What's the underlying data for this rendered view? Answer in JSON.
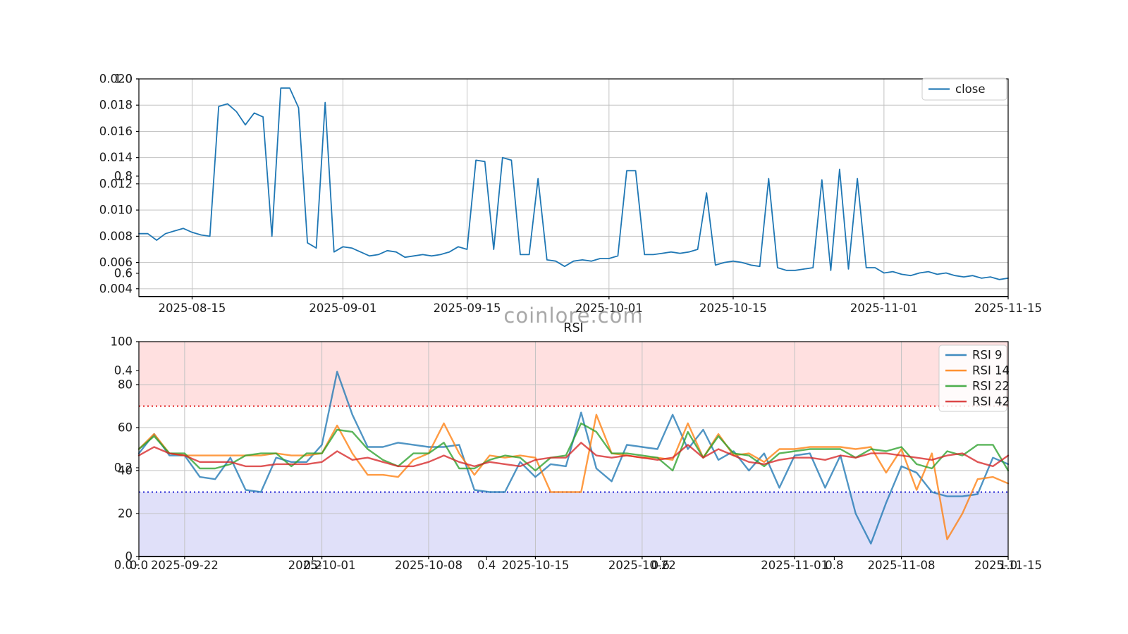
{
  "watermark": "coinlore.com",
  "style": {
    "background": "#ffffff",
    "grid_color": "#c2c2c2",
    "spine_color": "#000000",
    "tick_label_color": "#1a1a1a",
    "legend_border": "#cccccc",
    "legend_bg": "#ffffff",
    "overbought_band_color": "rgba(255,0,0,0.12)",
    "oversold_band_color": "rgba(0,0,205,0.12)",
    "overbought_line_color": "#dd0000",
    "oversold_line_color": "#0000cc"
  },
  "stray_axis_labels": {
    "y_labels": [
      "1.0",
      "0.8",
      "0.6",
      "0.4",
      "0.2",
      "0.0"
    ],
    "x_labels": [
      "0.0",
      "0.2",
      "0.4",
      "0.6",
      "0.8",
      "1.0"
    ]
  },
  "chart_data": [
    {
      "id": "price",
      "type": "line",
      "title": "",
      "start_date": "2025-08-09",
      "ylim": [
        0.0034,
        0.02
      ],
      "y_ticks": [
        0.004,
        0.006,
        0.008,
        0.01,
        0.012,
        0.014,
        0.016,
        0.018,
        0.02
      ],
      "y_tick_labels": [
        "0.004",
        "0.006",
        "0.008",
        "0.010",
        "0.012",
        "0.014",
        "0.016",
        "0.018",
        "0.020"
      ],
      "x_tick_labels": [
        "2025-08-15",
        "2025-09-01",
        "2025-09-15",
        "2025-10-01",
        "2025-10-15",
        "2025-11-01",
        "2025-11-15"
      ],
      "x_tick_indices": [
        6,
        23,
        37,
        53,
        67,
        84,
        98
      ],
      "grid": true,
      "legend_position": "upper right",
      "legend": [
        {
          "label": "close",
          "color": "#1f77b4"
        }
      ],
      "series": [
        {
          "name": "close",
          "color": "#1f77b4",
          "width": 1.8,
          "opacity": 1,
          "values": [
            0.0082,
            0.0082,
            0.0077,
            0.0082,
            0.0084,
            0.0086,
            0.0083,
            0.0081,
            0.008,
            0.0179,
            0.0181,
            0.0175,
            0.0165,
            0.0174,
            0.0171,
            0.008,
            0.0193,
            0.0193,
            0.0178,
            0.0075,
            0.0071,
            0.0182,
            0.0068,
            0.0072,
            0.0071,
            0.0068,
            0.0065,
            0.0066,
            0.0069,
            0.0068,
            0.0064,
            0.0065,
            0.0066,
            0.0065,
            0.0066,
            0.0068,
            0.0072,
            0.007,
            0.0138,
            0.0137,
            0.007,
            0.014,
            0.0138,
            0.0066,
            0.0066,
            0.0124,
            0.0062,
            0.0061,
            0.0057,
            0.0061,
            0.0062,
            0.0061,
            0.0063,
            0.0063,
            0.0065,
            0.013,
            0.013,
            0.0066,
            0.0066,
            0.0067,
            0.0068,
            0.0067,
            0.0068,
            0.007,
            0.0113,
            0.0058,
            0.006,
            0.0061,
            0.006,
            0.0058,
            0.0057,
            0.0124,
            0.0056,
            0.0054,
            0.0054,
            0.0055,
            0.0056,
            0.0123,
            0.0054,
            0.0131,
            0.0055,
            0.0124,
            0.0056,
            0.0056,
            0.0052,
            0.0053,
            0.0051,
            0.005,
            0.0052,
            0.0053,
            0.0051,
            0.0052,
            0.005,
            0.0049,
            0.005,
            0.0048,
            0.0049,
            0.0047,
            0.0048
          ]
        }
      ]
    },
    {
      "id": "rsi",
      "type": "line",
      "title": "RSI",
      "start_date": "2025-09-19",
      "ylim": [
        0,
        100
      ],
      "y_ticks": [
        0,
        20,
        40,
        60,
        80,
        100
      ],
      "y_tick_labels": [
        "0",
        "20",
        "40",
        "60",
        "80",
        "100"
      ],
      "x_tick_labels": [
        "2025-09-22",
        "2025-10-01",
        "2025-10-08",
        "2025-10-15",
        "2025-10-22",
        "2025-11-01",
        "2025-11-08",
        "2025-11-15"
      ],
      "x_tick_indices": [
        3,
        12,
        19,
        26,
        33,
        43,
        50,
        57
      ],
      "grid": true,
      "overbought_level": 70,
      "oversold_level": 30,
      "legend_position": "upper right",
      "legend": [
        {
          "label": "RSI 9",
          "color": "#1f77b4"
        },
        {
          "label": "RSI 14",
          "color": "#ff7f0e"
        },
        {
          "label": "RSI 22",
          "color": "#2ca02c"
        },
        {
          "label": "RSI 42",
          "color": "#d62728"
        }
      ],
      "series": [
        {
          "name": "RSI 9",
          "color": "#1f77b4",
          "width": 2.4,
          "opacity": 0.78,
          "values": [
            48,
            57,
            47,
            47,
            37,
            36,
            46,
            31,
            30,
            46,
            44,
            44,
            52,
            86,
            66,
            51,
            51,
            53,
            52,
            51,
            51,
            52,
            31,
            30,
            30,
            44,
            37,
            43,
            42,
            67,
            41,
            35,
            52,
            51,
            50,
            66,
            50,
            59,
            45,
            49,
            40,
            48,
            32,
            47,
            48,
            32,
            47,
            20,
            6,
            25,
            42,
            39,
            30,
            28,
            28,
            29,
            46,
            43
          ]
        },
        {
          "name": "RSI 14",
          "color": "#ff7f0e",
          "width": 2.4,
          "opacity": 0.78,
          "values": [
            50,
            57,
            48,
            47,
            47,
            47,
            47,
            47,
            47,
            48,
            47,
            47,
            48,
            61,
            48,
            38,
            38,
            37,
            45,
            48,
            62,
            48,
            38,
            47,
            46,
            47,
            46,
            30,
            30,
            30,
            66,
            48,
            47,
            46,
            46,
            45,
            62,
            46,
            57,
            47,
            48,
            44,
            50,
            50,
            51,
            51,
            51,
            50,
            51,
            39,
            50,
            31,
            48,
            8,
            20,
            36,
            37,
            34
          ]
        },
        {
          "name": "RSI 22",
          "color": "#2ca02c",
          "width": 2.4,
          "opacity": 0.78,
          "values": [
            50,
            56,
            48,
            48,
            41,
            41,
            43,
            47,
            48,
            48,
            42,
            48,
            48,
            59,
            58,
            50,
            45,
            42,
            48,
            48,
            53,
            41,
            41,
            45,
            47,
            46,
            40,
            46,
            47,
            62,
            58,
            48,
            48,
            47,
            46,
            40,
            58,
            46,
            56,
            48,
            47,
            42,
            48,
            49,
            50,
            50,
            50,
            46,
            50,
            49,
            51,
            43,
            41,
            49,
            47,
            52,
            52,
            40
          ]
        },
        {
          "name": "RSI 42",
          "color": "#d62728",
          "width": 2.4,
          "opacity": 0.78,
          "values": [
            47,
            51,
            48,
            47,
            44,
            44,
            44,
            42,
            42,
            43,
            43,
            43,
            44,
            49,
            45,
            46,
            44,
            42,
            42,
            44,
            47,
            44,
            42,
            44,
            43,
            42,
            45,
            46,
            46,
            53,
            47,
            46,
            47,
            46,
            45,
            46,
            52,
            46,
            50,
            47,
            44,
            43,
            45,
            46,
            46,
            45,
            47,
            46,
            48,
            48,
            47,
            46,
            45,
            47,
            48,
            44,
            42,
            47
          ]
        }
      ]
    }
  ]
}
